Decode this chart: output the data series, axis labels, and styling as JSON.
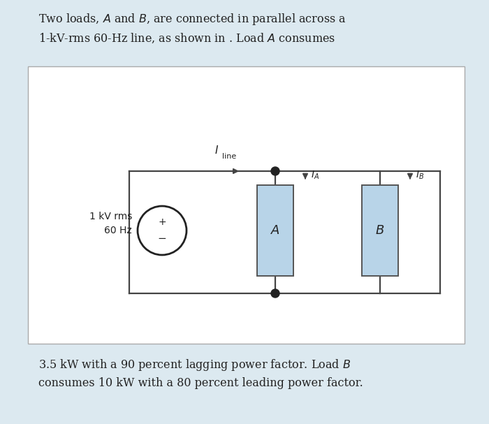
{
  "background_color": "#dce9f0",
  "panel_bg": "#ffffff",
  "panel_border": "#aaaaaa",
  "circuit_box_bg": "#b8d4e8",
  "circuit_box_border": "#555555",
  "title_text_plain": "Two loads, ",
  "title_text": "Two loads, $\\mathit{A}$ and $\\mathit{B}$, are connected in parallel across a\n1-kV-rms 60-Hz line, as shown in . Load $\\mathit{A}$ consumes",
  "bottom_text_line1": "3.5 kW with a 90 percent lagging power factor. Load $\\mathit{B}$",
  "bottom_text_line2": "consumes 10 kW with a 80 percent leading power factor.",
  "source_label": "1 kV rms\n60 Hz",
  "load_A_label": "$\\mathit{A}$",
  "load_B_label": "$\\mathit{B}$",
  "iline_label_main": "$I$",
  "iline_label_sub": "line",
  "iA_label": "$I_A$",
  "iB_label": "$I_B$",
  "plus_label": "+",
  "minus_label": "−",
  "wire_color": "#444444",
  "dot_color": "#222222",
  "arrow_color": "#444444",
  "text_color": "#222222",
  "font_size_title": 11.5,
  "font_size_body": 11.5,
  "font_size_labels": 10,
  "font_size_circuit": 11
}
